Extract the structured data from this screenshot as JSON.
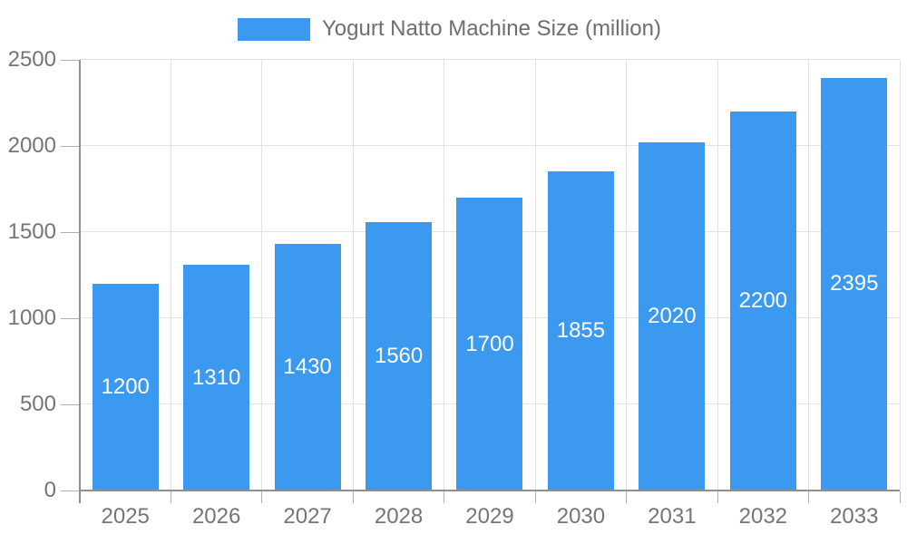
{
  "legend": {
    "label": "Yogurt Natto Machine Size (million)"
  },
  "chart_data": {
    "type": "bar",
    "title": "Yogurt Natto Machine Size (million)",
    "categories": [
      "2025",
      "2026",
      "2027",
      "2028",
      "2029",
      "2030",
      "2031",
      "2032",
      "2033"
    ],
    "values": [
      1200,
      1310,
      1430,
      1560,
      1700,
      1855,
      2020,
      2200,
      2395
    ],
    "xlabel": "",
    "ylabel": "",
    "ylim": [
      0,
      2500
    ],
    "yticks": [
      0,
      500,
      1000,
      1500,
      2000,
      2500
    ],
    "grid": true,
    "legend_position": "top-center",
    "bar_color": "#3B99EF",
    "value_label_color": "#ffffff",
    "grid_color": "#e2e2e2",
    "axis_color": "#8f8f8f",
    "tick_label_color": "#757575",
    "legend_text_color": "#6e6e6e"
  }
}
